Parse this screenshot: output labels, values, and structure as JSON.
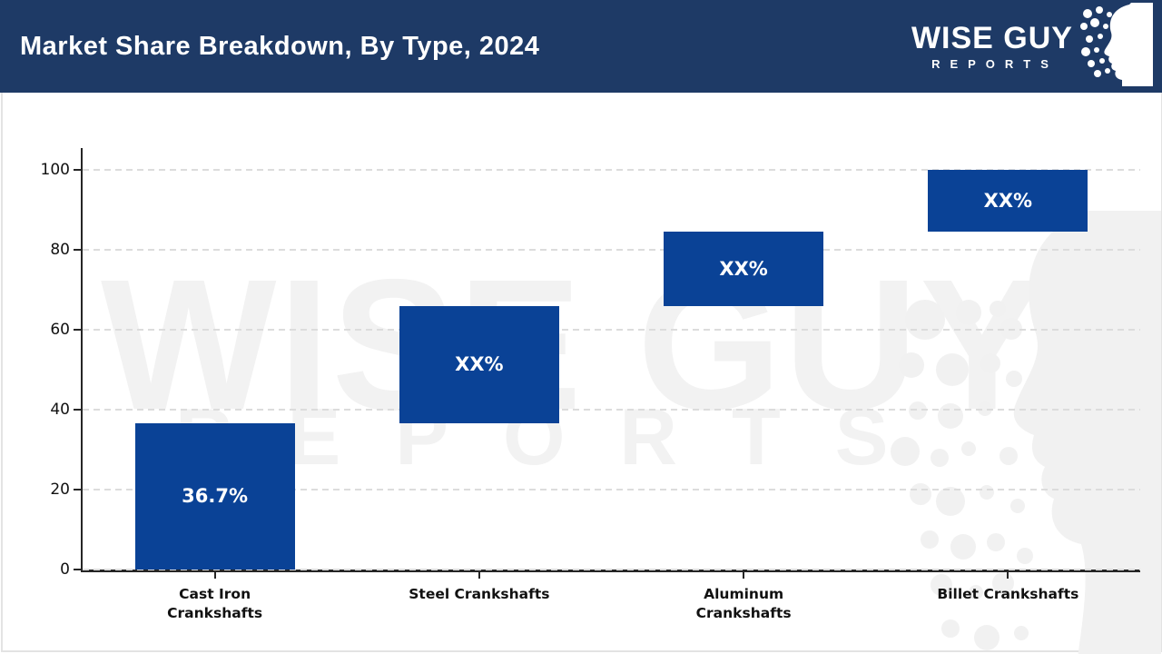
{
  "header": {
    "title": "Market Share Breakdown, By Type, 2024",
    "logo": {
      "line1": "WISE GUY",
      "line2": "REPORTS"
    }
  },
  "watermark": {
    "line1": "WISE GUY",
    "line2": "REPORTS"
  },
  "colors": {
    "header_bg": "#1e3a66",
    "bar": "#0a4296",
    "bar_label": "#ffffff",
    "grid": "#dcdcdc",
    "axis": "#262626",
    "watermark": "#f2f2f2"
  },
  "chart_data": {
    "type": "bar",
    "subtype": "waterfall",
    "title": "Market Share Breakdown, By Type, 2024",
    "xlabel": "",
    "ylabel": "",
    "categories": [
      "Cast Iron\nCrankshafts",
      "Steel Crankshafts",
      "Aluminum\nCrankshafts",
      "Billet Crankshafts"
    ],
    "values": [
      36.7,
      29.3,
      18.5,
      15.5
    ],
    "segments": [
      {
        "start": 0,
        "end": 36.7,
        "label": "36.7%"
      },
      {
        "start": 36.7,
        "end": 66.0,
        "label": "XX%"
      },
      {
        "start": 66.0,
        "end": 84.5,
        "label": "XX%"
      },
      {
        "start": 84.5,
        "end": 100.0,
        "label": "XX%"
      }
    ],
    "yticks": [
      0,
      20,
      40,
      60,
      80,
      100
    ],
    "ylim": [
      0,
      105.5
    ],
    "grid": "dashed",
    "legend": "none",
    "bar_color": "#0a4296",
    "label_color": "#ffffff"
  }
}
